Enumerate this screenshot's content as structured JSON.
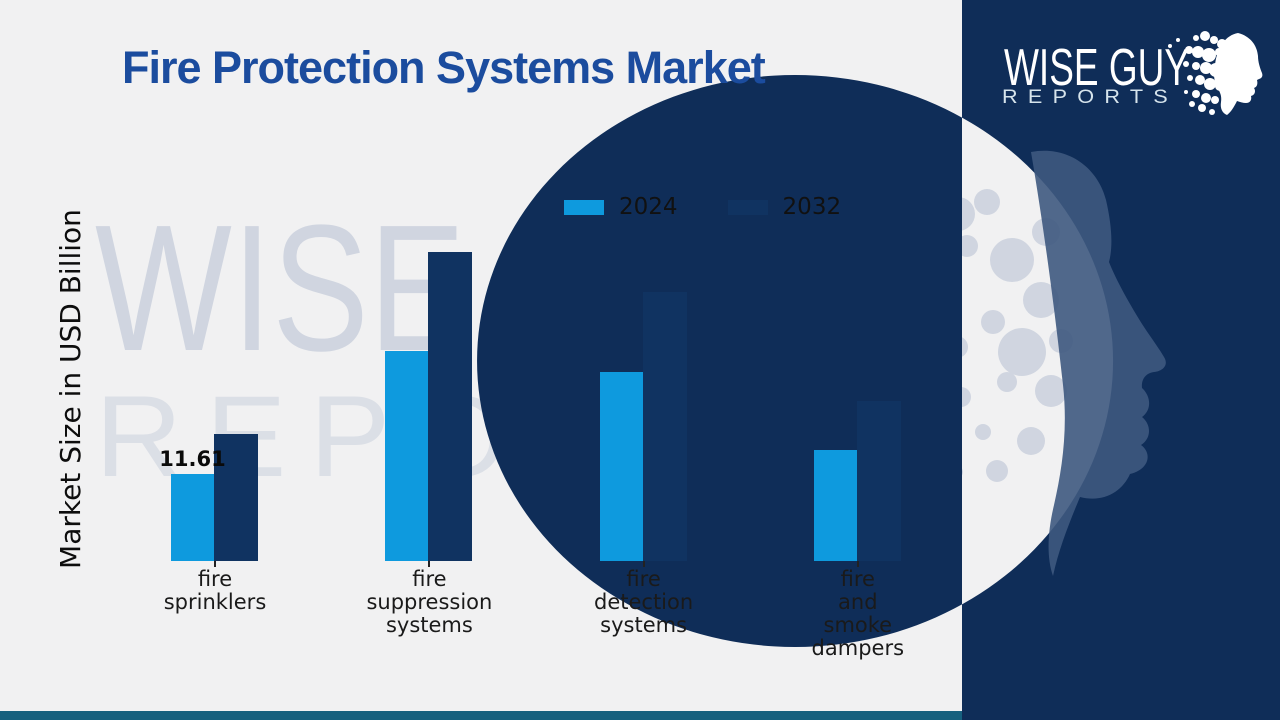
{
  "page": {
    "background_color": "#f1f1f2",
    "panel_color": "#0f2d58",
    "bottom_stripe_color": "#16607e"
  },
  "header": {
    "title": "Fire Protection Systems Market",
    "title_color": "#1b4c9e"
  },
  "brand": {
    "logo_line1": "WISE GUY",
    "logo_line2": "REPORTS",
    "watermark_line1": "WISE GUY",
    "watermark_line2": "REPORTS"
  },
  "chart_data": {
    "type": "bar",
    "title": "Fire Protection Systems Market",
    "ylabel": "Market Size in USD Billion",
    "xlabel": "",
    "ylim": [
      0,
      45
    ],
    "grid": false,
    "legend_position": "top-center",
    "categories": [
      "fire\nsprinklers",
      "fire\nsuppression\nsystems",
      "fire\ndetection\nsystems",
      "fire\nand\nsmoke\ndampers"
    ],
    "series": [
      {
        "name": "2024",
        "color": "#0e9ade",
        "values": [
          11.61,
          28.0,
          25.2,
          14.8
        ]
      },
      {
        "name": "2032",
        "color": "#103361",
        "values": [
          17.0,
          41.2,
          35.9,
          21.4
        ]
      }
    ],
    "bar_value_labels": [
      {
        "series": "2024",
        "category_index": 0,
        "text": "11.61"
      }
    ]
  }
}
